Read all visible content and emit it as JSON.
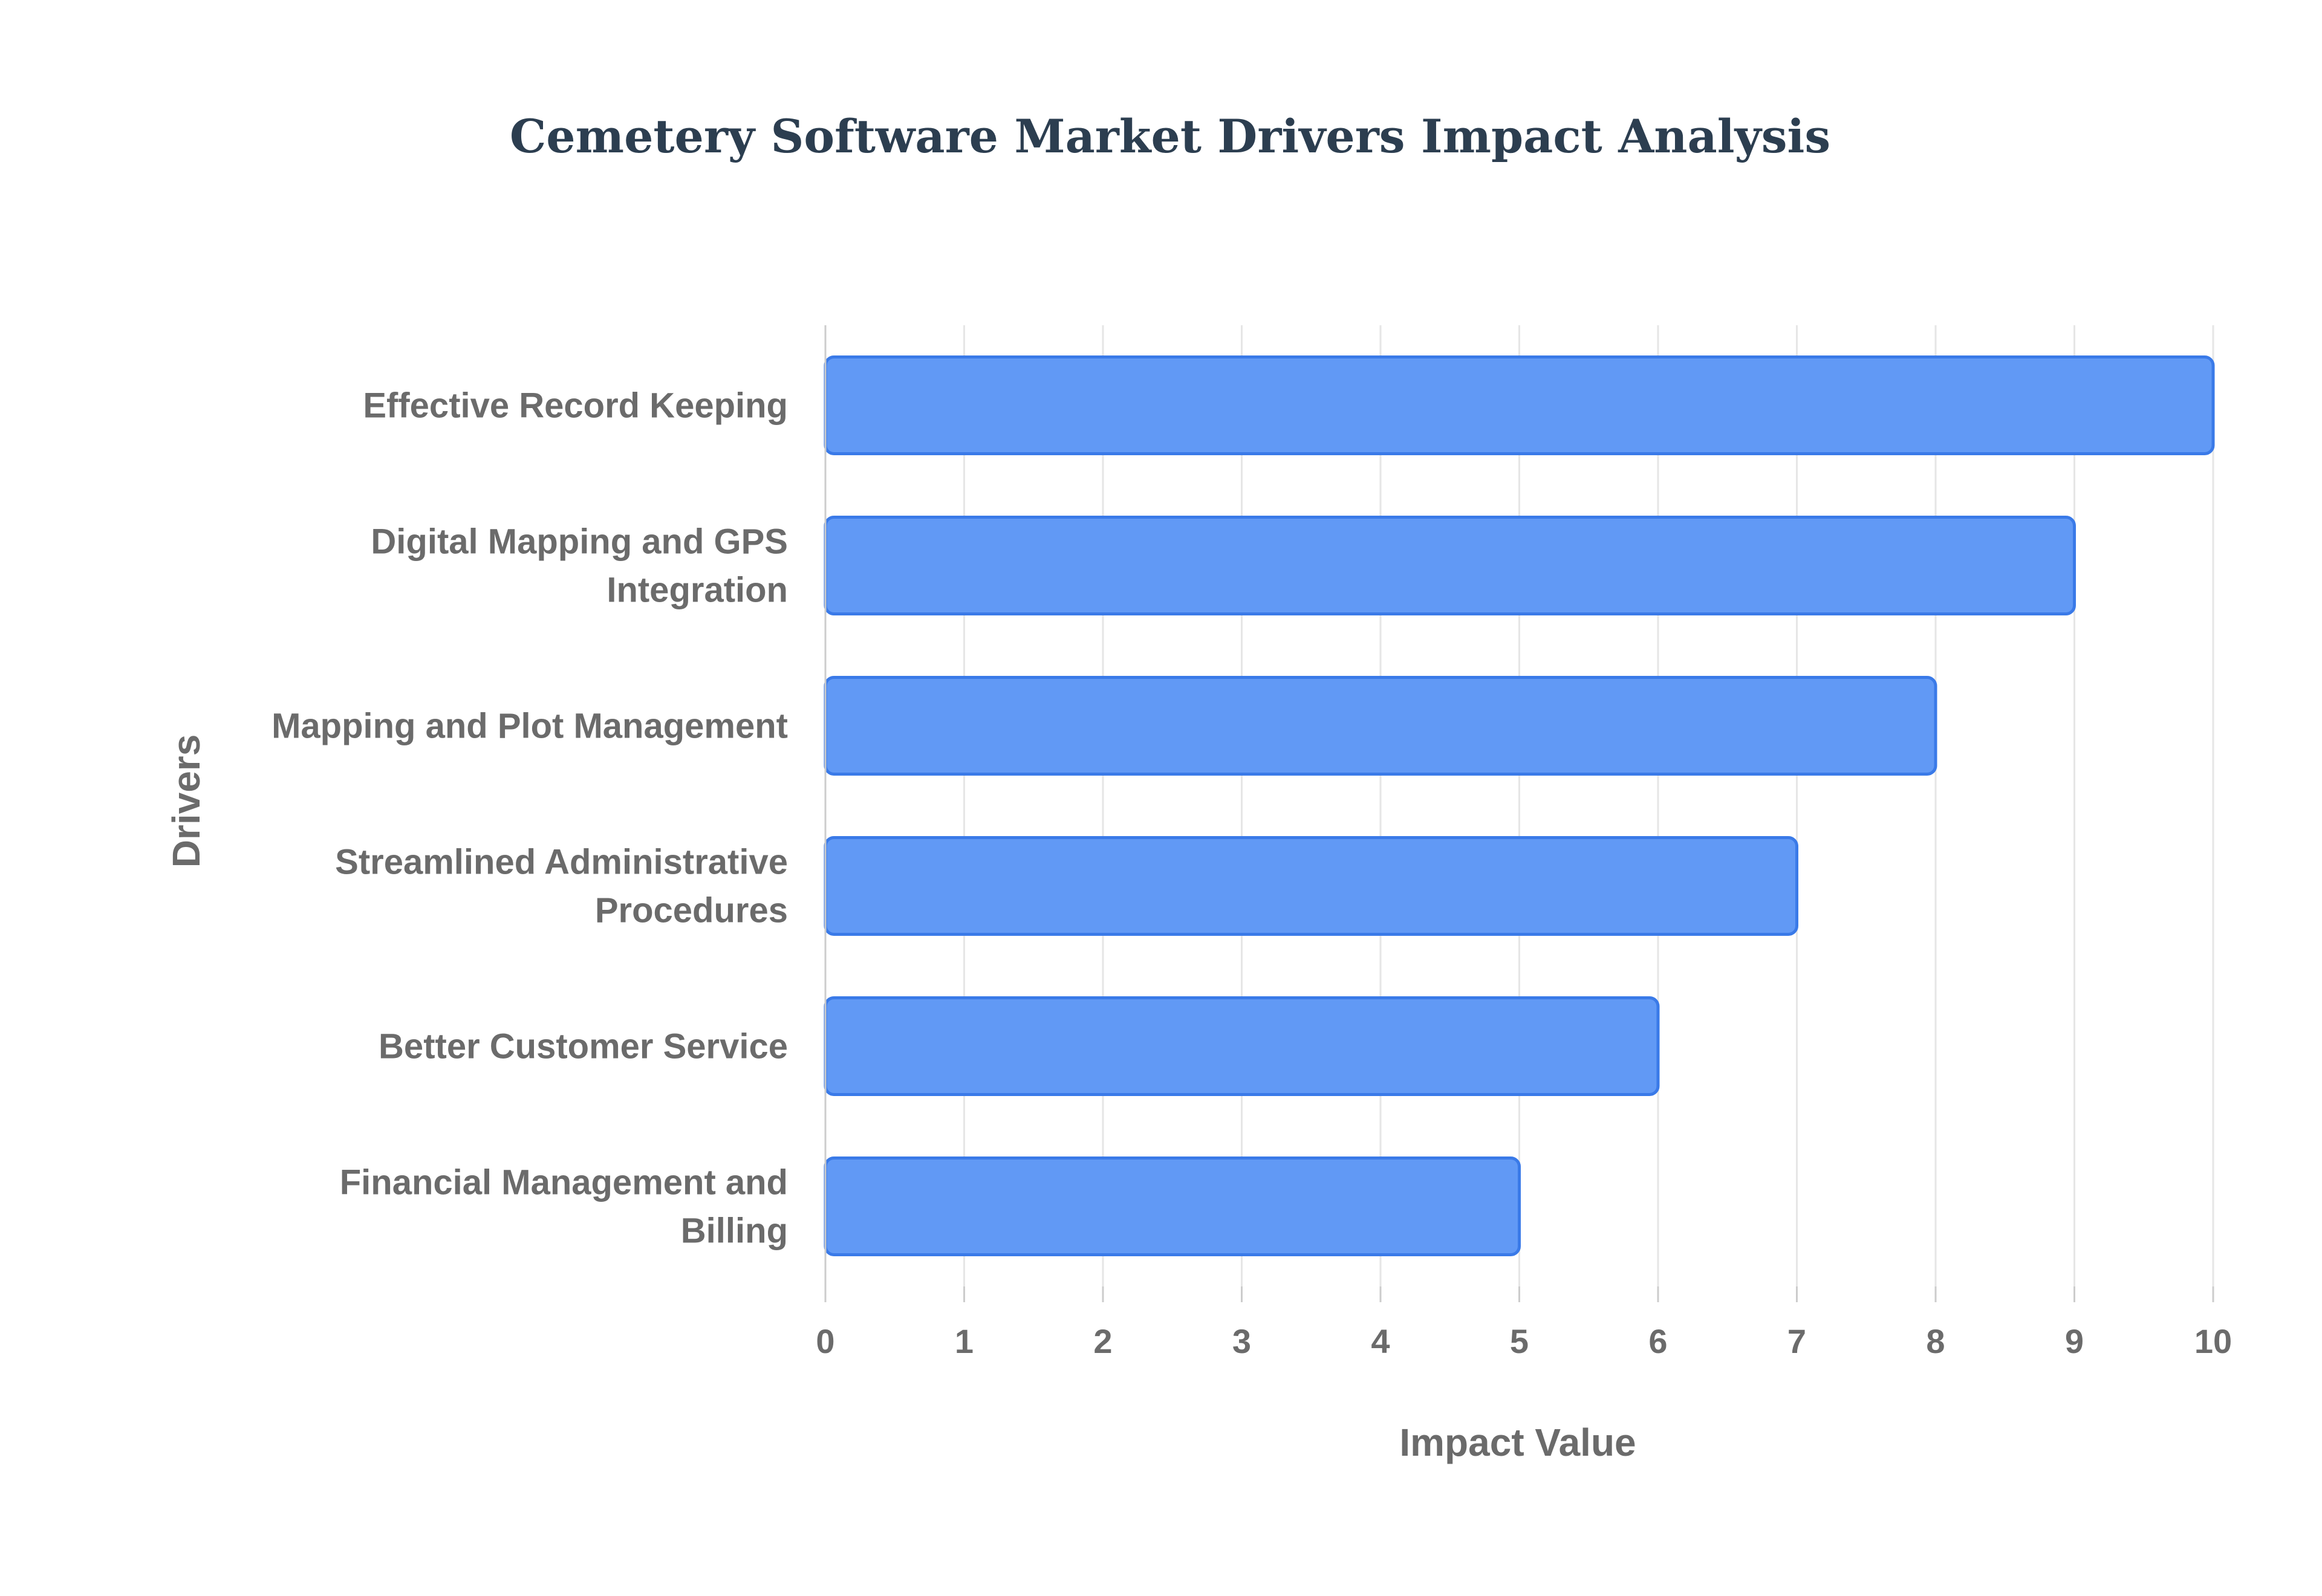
{
  "chart_data": {
    "type": "bar",
    "orientation": "horizontal",
    "title": "Cemetery Software Market Drivers Impact Analysis",
    "xlabel": "Impact Value",
    "ylabel": "Drivers",
    "categories": [
      "Effective Record Keeping",
      "Digital Mapping and GPS Integration",
      "Mapping and Plot Management",
      "Streamlined Administrative Procedures",
      "Better Customer Service",
      "Financial Management and Billing"
    ],
    "category_label_lines": [
      [
        "Effective Record Keeping"
      ],
      [
        "Digital Mapping and GPS",
        "Integration"
      ],
      [
        "Mapping and Plot Management"
      ],
      [
        "Streamlined Administrative",
        "Procedures"
      ],
      [
        "Better Customer Service"
      ],
      [
        "Financial Management and",
        "Billing"
      ]
    ],
    "values": [
      10,
      9,
      8,
      7,
      6,
      5
    ],
    "xlim": [
      0,
      10
    ],
    "xticks": [
      "0",
      "1",
      "2",
      "3",
      "4",
      "5",
      "6",
      "7",
      "8",
      "9",
      "10"
    ],
    "grid": true,
    "legend": "none",
    "colors": {
      "bar_fill": "#6199f5",
      "bar_stroke": "#3a7ae8",
      "title": "#2c3e50",
      "axis_text": "#6b6b6b",
      "grid": "#e6e6e6"
    }
  }
}
